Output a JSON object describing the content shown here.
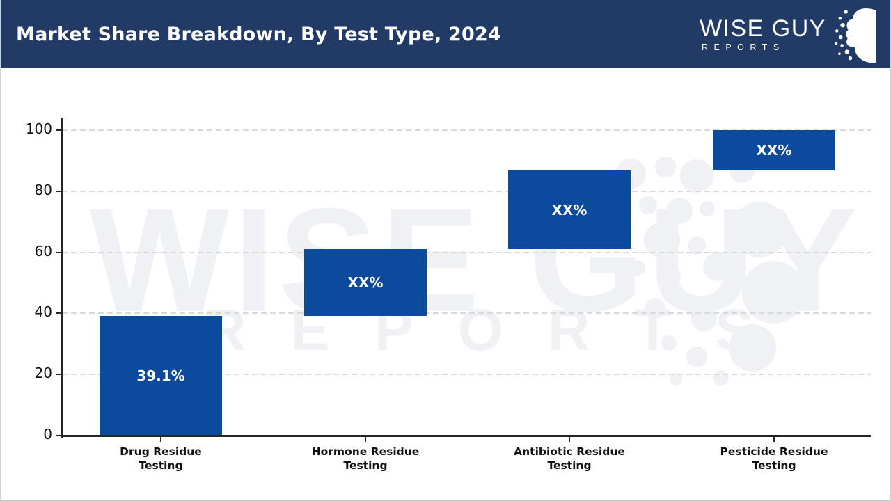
{
  "header": {
    "title": "Market Share Breakdown, By Test Type, 2024",
    "logo": {
      "name": "WISE GUY",
      "sub": "REPORTS"
    }
  },
  "watermark": {
    "name": "WISE GUY",
    "sub": "REPORTS"
  },
  "colors": {
    "header_bg": "#213a66",
    "bar": "#0b4a9c",
    "grid": "#d9d9d9",
    "axis": "#262626",
    "watermark": "#f0f1f4",
    "label_text": "#111111",
    "bar_label_text": "#ffffff"
  },
  "chart_data": {
    "type": "bar",
    "subtype": "waterfall",
    "title": "Market Share Breakdown, By Test Type, 2024",
    "categories": [
      "Drug Residue Testing",
      "Hormone Residue Testing",
      "Antibiotic Residue Testing",
      "Pesticide Residue Testing"
    ],
    "segments": [
      {
        "category": "Drug Residue Testing",
        "category_lines": [
          "Drug Residue",
          "Testing"
        ],
        "start": 0,
        "end": 39.1,
        "label": "39.1%"
      },
      {
        "category": "Hormone Residue Testing",
        "category_lines": [
          "Hormone Residue",
          "Testing"
        ],
        "start": 39.1,
        "end": 61.0,
        "label": "XX%"
      },
      {
        "category": "Antibiotic Residue Testing",
        "category_lines": [
          "Antibiotic Residue",
          "Testing"
        ],
        "start": 61.0,
        "end": 86.8,
        "label": "XX%"
      },
      {
        "category": "Pesticide Residue Testing",
        "category_lines": [
          "Pesticide Residue",
          "Testing"
        ],
        "start": 86.8,
        "end": 100,
        "label": "XX%"
      }
    ],
    "xlabel": "",
    "ylabel": "",
    "ylim": [
      0,
      100
    ],
    "yticks": [
      0,
      20,
      40,
      60,
      80,
      100
    ],
    "grid": "horizontal-dashed",
    "legend": "none"
  }
}
